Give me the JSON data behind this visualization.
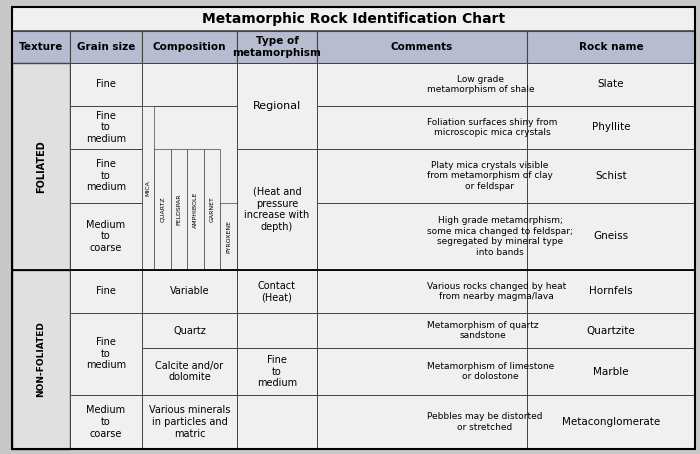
{
  "title": "Metamorphic Rock Identification Chart",
  "headers": [
    "Texture",
    "Grain size",
    "Composition",
    "Type of\nmetamorphism",
    "Comments",
    "Rock name"
  ],
  "bg_color": "#c8c8c8",
  "header_bg": "#b8bcd0",
  "cell_bg_foliated": "#e0e0e0",
  "white_bg": "#f0f0f0",
  "title_bg": "#f0f0f0",
  "minerals": [
    "MICA",
    "QUARTZ",
    "FELDSPAR",
    "AMPHIBOLE",
    "GARNET",
    "PYROXENE"
  ],
  "foliated_grains": [
    "Fine",
    "Fine\nto\nmedium",
    "Fine\nto\nmedium",
    "Medium\nto\ncoarse"
  ],
  "foliated_comments": [
    "Low grade\nmetamorphism of shale",
    "Foliation surfaces shiny from\nmicroscopic mica crystals",
    "Platy mica crystals visible\nfrom metamorphism of clay\nor feldspar",
    "High grade metamorphism;\nsome mica changed to feldspar;\nsegregated by mineral type\ninto bands"
  ],
  "foliated_rocks": [
    "Slate",
    "Phyllite",
    "Schist",
    "Gneiss"
  ],
  "nf_grains": [
    "Fine",
    "Fine\nto\nmedium",
    "Fine\nto\nmedium",
    "Medium\nto\ncoarse"
  ],
  "nf_compositions": [
    "Variable",
    "Quartz",
    "Calcite and/or\ndolomite",
    "Various minerals\nin particles and\nmatric"
  ],
  "nf_metamorphisms": [
    "Contact\n(Heat)",
    "",
    "Fine\nto\nmedium",
    ""
  ],
  "nf_comments": [
    "Various rocks changed by heat\nfrom nearby magma/lava",
    "Metamorphism of quartz\nsandstone",
    "Metamorphism of limestone\nor dolostone",
    "Pebbles may be distorted\nor stretched"
  ],
  "nf_rocks": [
    "Hornfels",
    "Quartzite",
    "Marble",
    "Metaconglomerate"
  ]
}
